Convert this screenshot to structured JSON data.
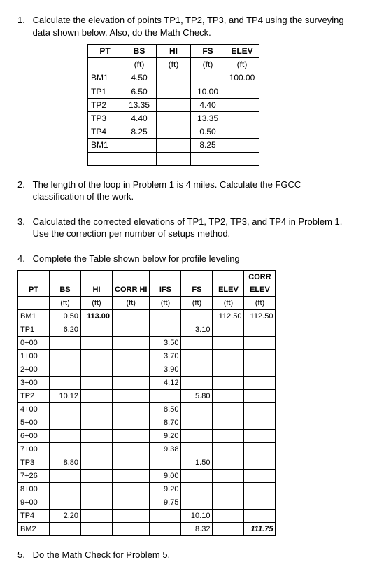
{
  "p1": {
    "num": "1.",
    "text": "Calculate the elevation of points TP1, TP2, TP3, and TP4 using the surveying data shown below. Also, do the Math Check.",
    "table": {
      "head": [
        "PT",
        "BS",
        "HI",
        "FS",
        "ELEV"
      ],
      "units": [
        "",
        "(ft)",
        "(ft)",
        "(ft)",
        "(ft)"
      ],
      "rows": [
        [
          "BM1",
          "4.50",
          "",
          "",
          "100.00"
        ],
        [
          "TP1",
          "6.50",
          "",
          "10.00",
          ""
        ],
        [
          "TP2",
          "13.35",
          "",
          "4.40",
          ""
        ],
        [
          "TP3",
          "4.40",
          "",
          "13.35",
          ""
        ],
        [
          "TP4",
          "8.25",
          "",
          "0.50",
          ""
        ],
        [
          "BM1",
          "",
          "",
          "8.25",
          ""
        ],
        [
          "",
          "",
          "",
          "",
          ""
        ]
      ]
    }
  },
  "p2": {
    "num": "2.",
    "text": "The length of the loop in Problem 1 is 4 miles. Calculate the FGCC classification of the work."
  },
  "p3": {
    "num": "3.",
    "text": "Calculated the corrected elevations of TP1, TP2, TP3, and TP4 in Problem 1. Use the correction per number of setups method."
  },
  "p4": {
    "num": "4.",
    "text": "Complete the Table shown below for profile leveling",
    "table": {
      "head_top": [
        "",
        "",
        "",
        "",
        "",
        "",
        "",
        "CORR"
      ],
      "head": [
        "PT",
        "BS",
        "HI",
        "CORR HI",
        "IFS",
        "FS",
        "ELEV",
        "ELEV"
      ],
      "units": [
        "",
        "(ft)",
        "(ft)",
        "(ft)",
        "(ft)",
        "(ft)",
        "(ft)",
        "(ft)"
      ],
      "rows": [
        [
          "BM1",
          "0.50",
          "113.00",
          "",
          "",
          "",
          "112.50",
          "112.50"
        ],
        [
          "TP1",
          "6.20",
          "",
          "",
          "",
          "3.10",
          "",
          ""
        ],
        [
          "0+00",
          "",
          "",
          "",
          "3.50",
          "",
          "",
          ""
        ],
        [
          "1+00",
          "",
          "",
          "",
          "3.70",
          "",
          "",
          ""
        ],
        [
          "2+00",
          "",
          "",
          "",
          "3.90",
          "",
          "",
          ""
        ],
        [
          "3+00",
          "",
          "",
          "",
          "4.12",
          "",
          "",
          ""
        ],
        [
          "TP2",
          "10.12",
          "",
          "",
          "",
          "5.80",
          "",
          ""
        ],
        [
          "4+00",
          "",
          "",
          "",
          "8.50",
          "",
          "",
          ""
        ],
        [
          "5+00",
          "",
          "",
          "",
          "8.70",
          "",
          "",
          ""
        ],
        [
          "6+00",
          "",
          "",
          "",
          "9.20",
          "",
          "",
          ""
        ],
        [
          "7+00",
          "",
          "",
          "",
          "9.38",
          "",
          "",
          ""
        ],
        [
          "TP3",
          "8.80",
          "",
          "",
          "",
          "1.50",
          "",
          ""
        ],
        [
          "7+26",
          "",
          "",
          "",
          "9.00",
          "",
          "",
          ""
        ],
        [
          "8+00",
          "",
          "",
          "",
          "9.20",
          "",
          "",
          ""
        ],
        [
          "9+00",
          "",
          "",
          "",
          "9.75",
          "",
          "",
          ""
        ],
        [
          "TP4",
          "2.20",
          "",
          "",
          "",
          "10.10",
          "",
          ""
        ],
        [
          "BM2",
          "",
          "",
          "",
          "",
          "8.32",
          "",
          "111.75"
        ]
      ]
    }
  },
  "p5": {
    "num": "5.",
    "text": "Do the Math Check for Problem 5."
  }
}
